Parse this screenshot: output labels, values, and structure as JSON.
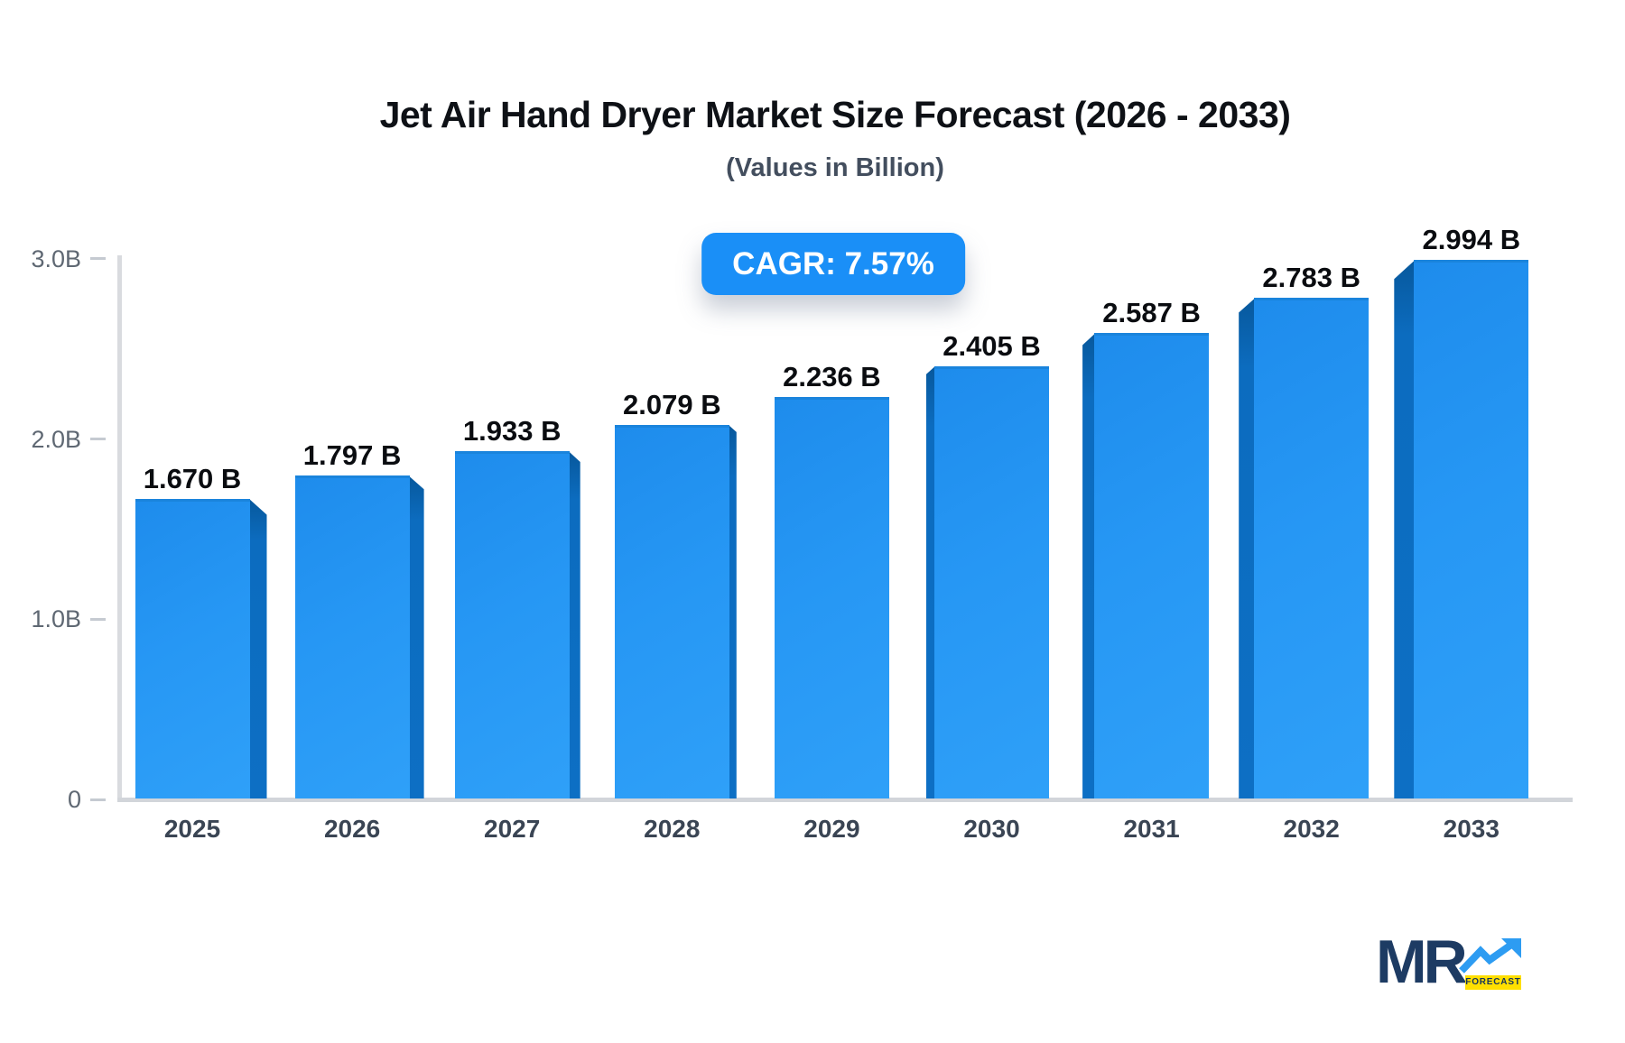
{
  "header": {
    "title": "Jet Air Hand Dryer Market Size Forecast (2026 - 2033)",
    "subtitle": "(Values in Billion)"
  },
  "cagr_badge": {
    "label": "CAGR: 7.57%",
    "background": "#1a8ff7",
    "text_color": "#ffffff"
  },
  "chart_data": {
    "type": "bar",
    "title": "Jet Air Hand Dryer Market Size Forecast (2026 - 2033)",
    "subtitle": "(Values in Billion)",
    "categories": [
      "2025",
      "2026",
      "2027",
      "2028",
      "2029",
      "2030",
      "2031",
      "2032",
      "2033"
    ],
    "values": [
      1.67,
      1.797,
      1.933,
      2.079,
      2.236,
      2.405,
      2.587,
      2.783,
      2.994
    ],
    "value_labels": [
      "1.670 B",
      "1.797 B",
      "1.933 B",
      "2.079 B",
      "2.236 B",
      "2.405 B",
      "2.587 B",
      "2.783 B",
      "2.994 B"
    ],
    "cagr_percent": 7.57,
    "xlabel": "",
    "ylabel": "",
    "ylim": [
      0,
      3.0
    ],
    "yticks": {
      "values": [
        0,
        1.0,
        2.0,
        3.0
      ],
      "labels": [
        "0",
        "1.0B",
        "2.0B",
        "3.0B"
      ]
    },
    "grid": false,
    "legend": false,
    "style": "3d-perspective-bars",
    "bar_face_color": "#2496f4",
    "bar_side_color": "#0c6cbf",
    "axis_color": "#d2d5da"
  },
  "logo": {
    "brand": "MR",
    "sub_label": "FORECAST",
    "arrow_icon": "trending-up-arrow",
    "brand_color": "#1d3b63",
    "accent_yellow": "#ffdf00",
    "arrow_blue": "#2d9cf2"
  }
}
